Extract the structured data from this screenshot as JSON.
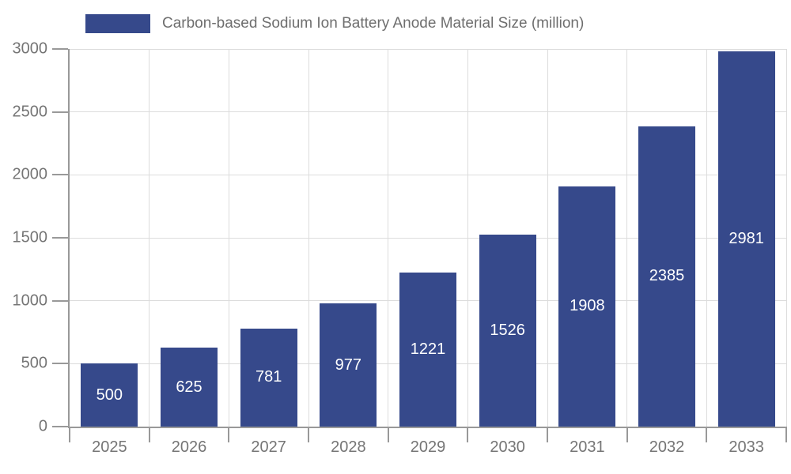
{
  "legend": {
    "label": "Carbon-based Sodium Ion Battery Anode Material Size (million)"
  },
  "chart_data": {
    "type": "bar",
    "title": "Carbon-based Sodium Ion Battery Anode Material Size (million)",
    "categories": [
      "2025",
      "2026",
      "2027",
      "2028",
      "2029",
      "2030",
      "2031",
      "2032",
      "2033"
    ],
    "values": [
      500,
      625,
      781,
      977,
      1221,
      1526,
      1908,
      2385,
      2981
    ],
    "xlabel": "",
    "ylabel": "",
    "ylim": [
      0,
      3000
    ],
    "ytick_step": 500,
    "yticks": [
      0,
      500,
      1000,
      1500,
      2000,
      2500,
      3000
    ],
    "grid": true,
    "legend_position": "top-left",
    "value_labels": "inside-center"
  },
  "colors": {
    "bar": "#36498B",
    "grid": "#DCDCDC",
    "axis": "#999999",
    "tick_label": "#757575",
    "legend_text": "#6E6E6E",
    "value_label": "#FFFFFF",
    "background": "#FFFFFF"
  }
}
